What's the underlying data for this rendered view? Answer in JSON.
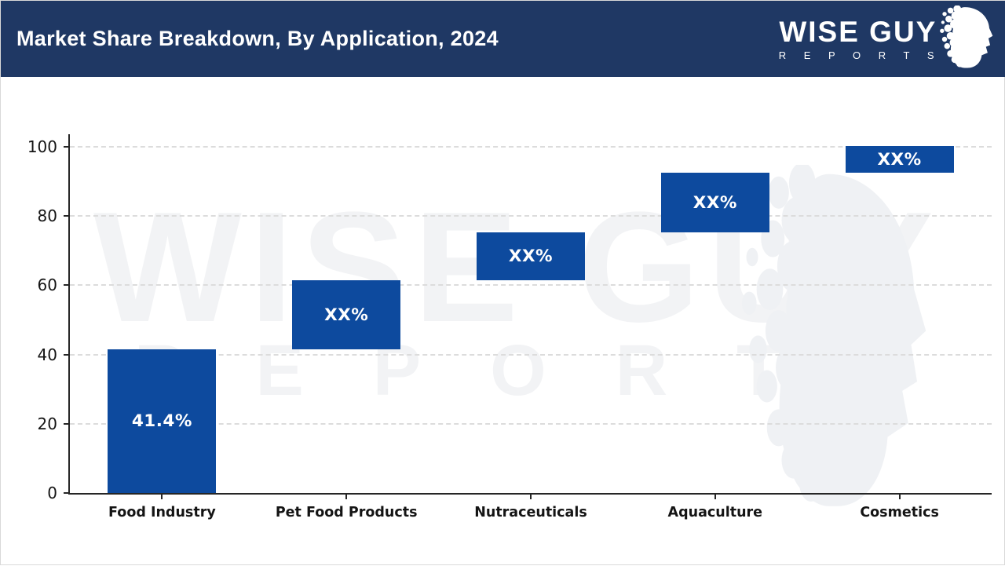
{
  "header": {
    "title": "Market Share Breakdown, By Application, 2024"
  },
  "logo": {
    "wordmark": "WISE GUY",
    "subtext": "R E P O R T S"
  },
  "watermark": {
    "wordmark": "WISE GUY",
    "subtext": "REPORTS"
  },
  "chart_data": {
    "type": "bar",
    "subtype": "waterfall",
    "title": "Market Share Breakdown, By Application, 2024",
    "categories": [
      "Food Industry",
      "Pet Food Products",
      "Nutraceuticals",
      "Aquaculture",
      "Cosmetics"
    ],
    "segments": [
      {
        "category": "Food Industry",
        "start": 0,
        "end": 41.4,
        "label": "41.4%"
      },
      {
        "category": "Pet Food Products",
        "start": 41.4,
        "end": 61.4,
        "label": "XX%"
      },
      {
        "category": "Nutraceuticals",
        "start": 61.4,
        "end": 75.3,
        "label": "XX%"
      },
      {
        "category": "Aquaculture",
        "start": 75.3,
        "end": 92.5,
        "label": "XX%"
      },
      {
        "category": "Cosmetics",
        "start": 92.5,
        "end": 100.2,
        "label": "XX%"
      }
    ],
    "xlabel": "",
    "ylabel": "",
    "ylim": [
      0,
      103.6
    ],
    "yticks": [
      0,
      20,
      40,
      60,
      80,
      100
    ],
    "grid": true,
    "grid_style": "dashed",
    "legend": false,
    "bar_color": "#0d4a9e",
    "value_label_color": "#ffffff",
    "header_color": "#1f3864"
  }
}
